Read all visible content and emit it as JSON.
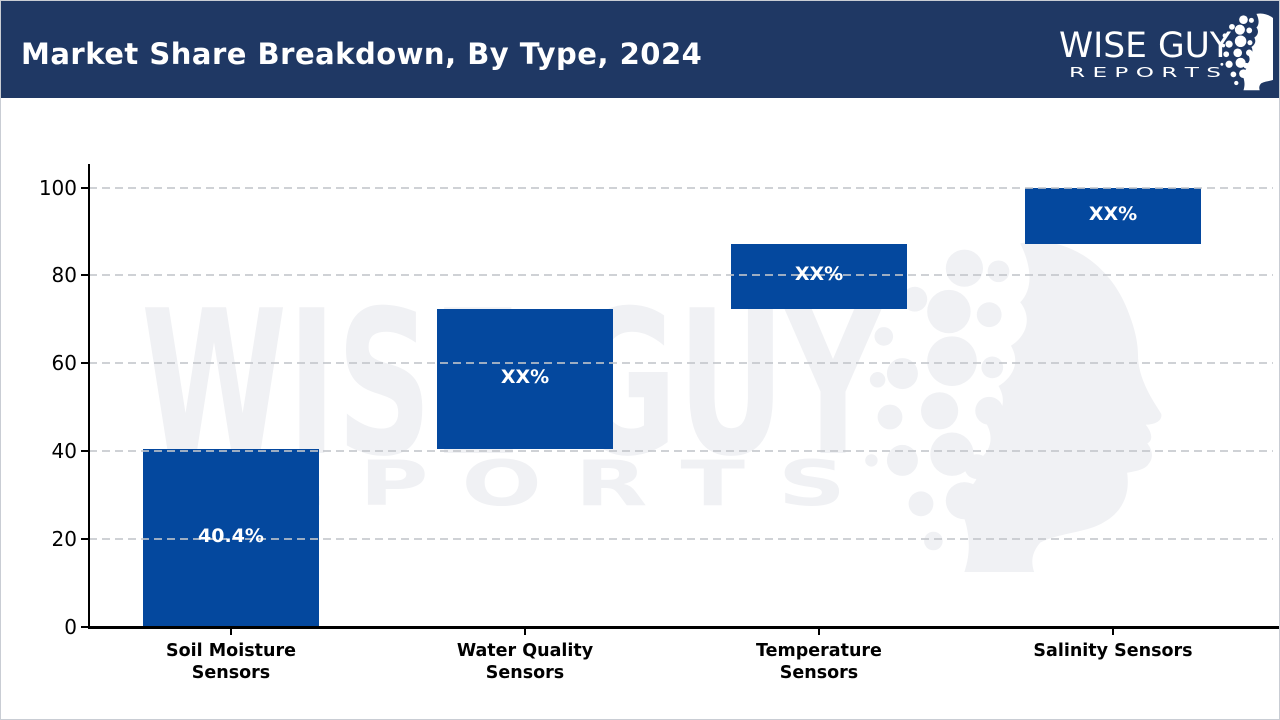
{
  "header": {
    "title": "Market Share Breakdown, By Type, 2024",
    "bg_color": "#1f3864",
    "logo": {
      "line1": "WISE GUY",
      "line2": "R E P O R T S"
    }
  },
  "watermark": {
    "line1": "WISE GUY",
    "line2": "R E P O R T S",
    "color": "#f0f1f4"
  },
  "chart_data": {
    "type": "bar",
    "variant": "waterfall-stacked-breakdown",
    "title": "Market Share Breakdown, By Type, 2024",
    "categories": [
      "Soil Moisture\nSensors",
      "Water Quality\nSensors",
      "Temperature\nSensors",
      "Salinity Sensors"
    ],
    "segments": [
      {
        "category": "Soil Moisture Sensors",
        "start": 0,
        "end": 40.4,
        "value": 40.4,
        "label": "40.4%"
      },
      {
        "category": "Water Quality Sensors",
        "start": 40.4,
        "end": 72.4,
        "value": 32.0,
        "label": "XX%"
      },
      {
        "category": "Temperature Sensors",
        "start": 72.4,
        "end": 87.2,
        "value": 14.8,
        "label": "XX%"
      },
      {
        "category": "Salinity Sensors",
        "start": 87.2,
        "end": 100,
        "value": 12.8,
        "label": "XX%"
      }
    ],
    "xlabel": "",
    "ylabel": "",
    "ylim": [
      0,
      100
    ],
    "yticks": [
      0,
      20,
      40,
      60,
      80,
      100
    ],
    "grid": "horizontal dashed",
    "gridline_color": "#d9d9d9",
    "bar_color": "#04489e",
    "bar_label_color": "#ffffff",
    "legend": "none"
  }
}
